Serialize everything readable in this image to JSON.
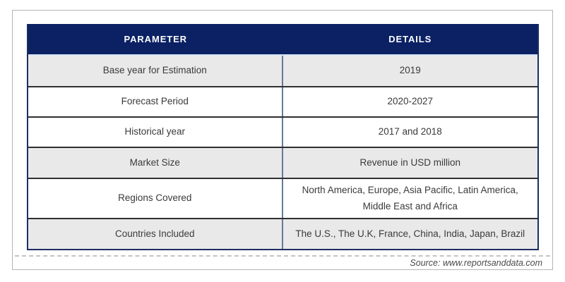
{
  "table": {
    "headers": [
      "PARAMETER",
      "DETAILS"
    ],
    "rows": [
      {
        "parameter": "Base year for Estimation",
        "details": "2019"
      },
      {
        "parameter": "Forecast Period",
        "details": "2020-2027"
      },
      {
        "parameter": "Historical year",
        "details": "2017 and 2018"
      },
      {
        "parameter": "Market Size",
        "details": "Revenue in USD million"
      },
      {
        "parameter": "Regions Covered",
        "details": "North America, Europe, Asia Pacific, Latin America, Middle East and Africa"
      },
      {
        "parameter": "Countries Included",
        "details": "The U.S., The U.K, France, China, India, Japan, Brazil"
      }
    ]
  },
  "source": {
    "label": "Source: www.reportsanddata.com"
  },
  "colors": {
    "header_bg": "#0b2164",
    "header_text": "#ffffff",
    "shaded_row_bg": "#e9e9e9",
    "table_border": "#1c2f63",
    "row_divider": "#2f2f2f",
    "column_divider": "#67789d",
    "header_underline": "#d9e4f4",
    "card_border": "#b5b5b5",
    "body_text": "#3a3a3a",
    "source_text": "#4a4a4a"
  },
  "chart_data": {
    "type": "table",
    "title": "Report scope parameters",
    "columns": [
      "PARAMETER",
      "DETAILS"
    ],
    "rows": [
      [
        "Base year for Estimation",
        "2019"
      ],
      [
        "Forecast Period",
        "2020-2027"
      ],
      [
        "Historical year",
        "2017 and 2018"
      ],
      [
        "Market Size",
        "Revenue in USD million"
      ],
      [
        "Regions Covered",
        "North America, Europe, Asia Pacific, Latin America, Middle East and Africa"
      ],
      [
        "Countries Included",
        "The U.S., The U.K, France, China, India, Japan, Brazil"
      ]
    ],
    "source": "Source: www.reportsanddata.com",
    "layout_hints": {
      "shaded_rows": [
        0,
        3,
        5
      ],
      "header_style": "dark-navy with white uppercase text",
      "column_split": "50/50"
    }
  }
}
